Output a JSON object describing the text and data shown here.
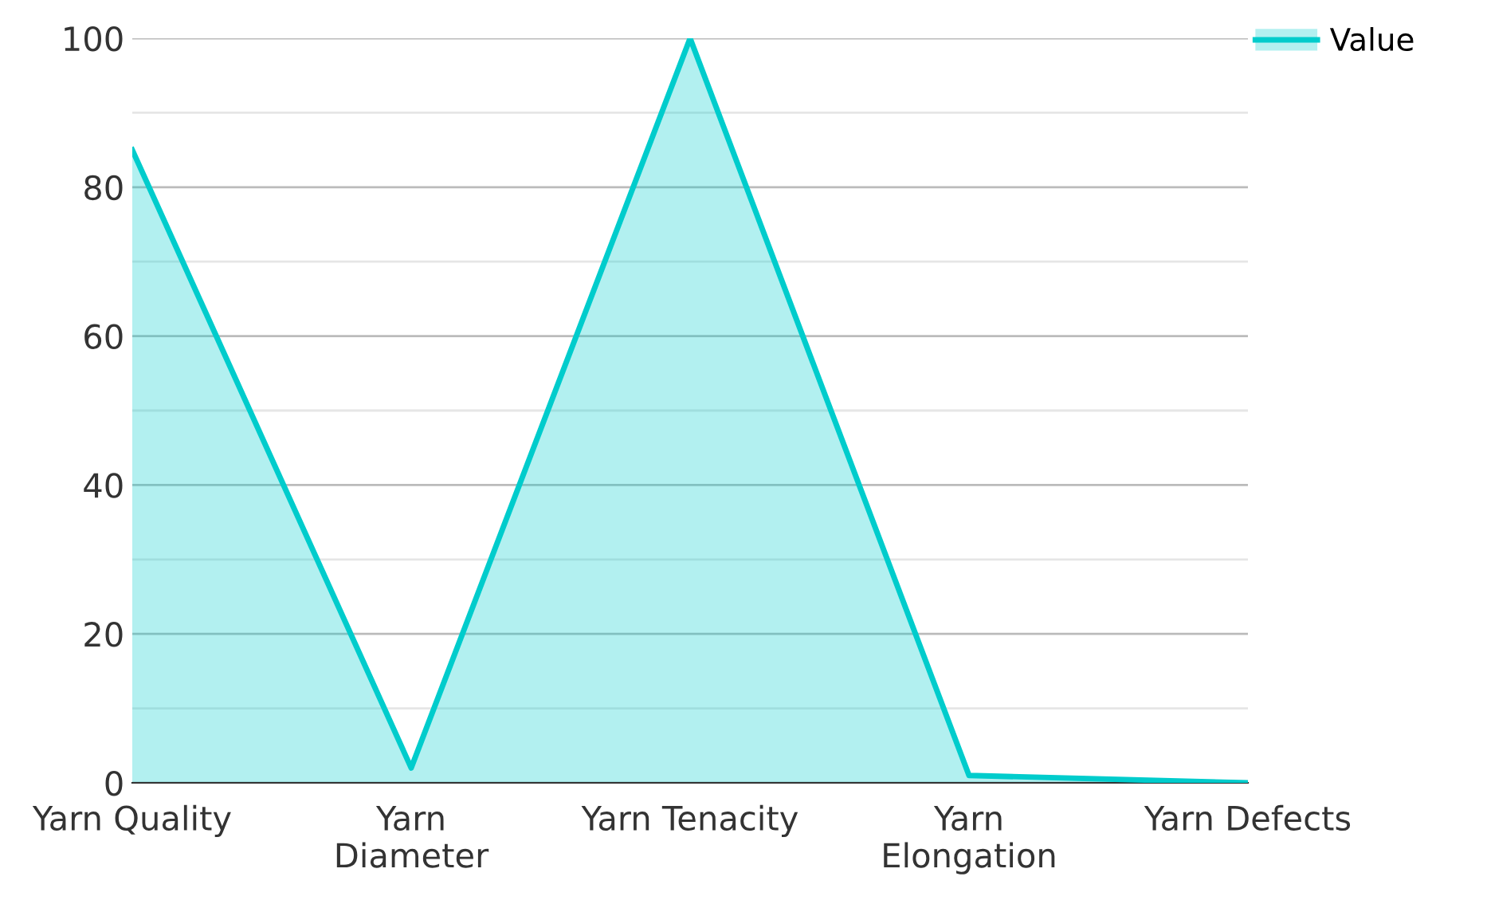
{
  "chart_data": {
    "type": "area",
    "categories": [
      "Yarn Quality",
      "Yarn\nDiameter",
      "Yarn Tenacity",
      "Yarn\nElongation",
      "Yarn Defects"
    ],
    "series": [
      {
        "name": "Value",
        "color": "#00cccc",
        "values": [
          85,
          2,
          100,
          1,
          0
        ]
      }
    ],
    "ylim": [
      0,
      100
    ],
    "yticks": [
      0,
      {
        "value": 10,
        "label": null
      },
      20,
      {
        "value": 30,
        "label": null
      },
      40,
      {
        "value": 50,
        "label": null
      },
      60,
      {
        "value": 70,
        "label": null
      },
      80,
      {
        "value": 90,
        "label": null
      },
      100
    ],
    "grid": "y",
    "legend": "top right"
  }
}
